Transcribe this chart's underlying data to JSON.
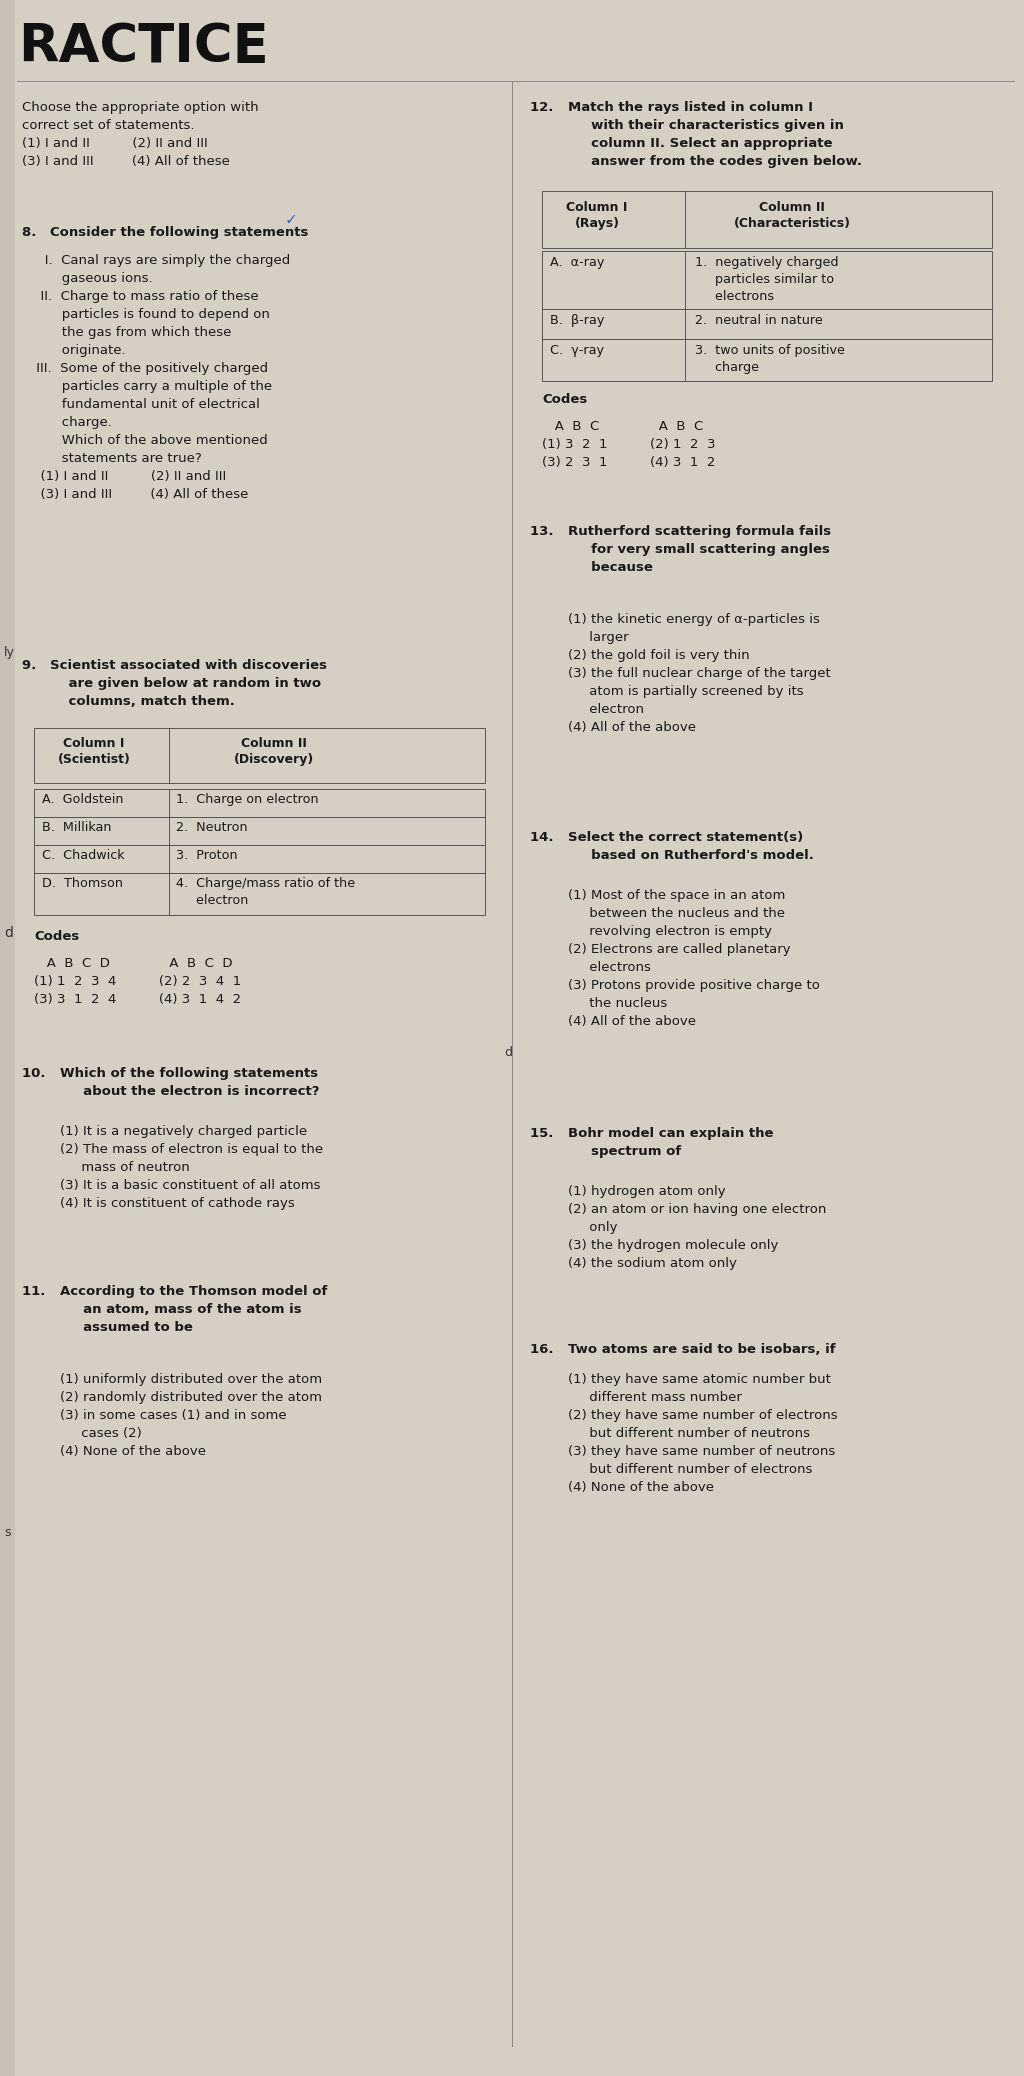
{
  "bg_color": "#d6cfc4",
  "text_color": "#1a1a1a",
  "title": "RACTICE",
  "content": [
    {
      "type": "plain",
      "text": "Choose the appropriate option with\ncorrect set of statements.\n(1) I and II          (2) II and III\n(3) I and III         (4) All of these"
    },
    {
      "type": "numbered",
      "number": "8.",
      "bold_part": "Consider the following statements",
      "body": "   I.  Canal rays are simply the charged\n       gaseous ions.\n  II.  Charge to mass ratio of these\n       particles is found to depend on\n       the gas from which these\n       originate.\n III.  Some of the positively charged\n       particles carry a multiple of the\n       fundamental unit of electrical\n       charge.\n       Which of the above mentioned\n       statements are true?\n       (1) I and II          (2) II and III\n       (3) I and III         (4) All of these"
    },
    {
      "type": "numbered",
      "number": "9.",
      "bold_part": "Scientist associated with discoveries\n    are given below at random in two\n    columns, match them.",
      "body": ""
    },
    {
      "type": "two_col_table",
      "col1_header": "Column I\n(Scientist)",
      "col2_header": "Column II\n(Discovery)",
      "rows": [
        [
          "A.  Goldstein",
          "1.  Charge on electron"
        ],
        [
          "B.  Millikan",
          "2.  Neutron"
        ],
        [
          "C.  Chadwick",
          "3.  Proton"
        ],
        [
          "D.  Thomson",
          "4.  Charge/mass ratio of the\n     electron"
        ]
      ],
      "codes_title": "Codes",
      "codes": "   A  B  C  D              A  B  C  D\n(1) 1  2  3  4          (2) 2  3  4  1\n(3) 3  1  2  4          (4) 3  1  4  2"
    },
    {
      "type": "numbered",
      "number": "10.",
      "bold_part": "Which of the following statements\n     about the electron is incorrect?",
      "body": "(1) It is a negatively charged particle\n(2) The mass of electron is equal to the\n     mass of neutron\n(3) It is a basic constituent of all atoms\n(4) It is constituent of cathode rays"
    },
    {
      "type": "numbered",
      "number": "11.",
      "bold_part": "According to the Thomson model of\n     an atom, mass of the atom is\n     assumed to be",
      "body": "(1) uniformly distributed over the atom\n(2) randomly distributed over the atom\n(3) in some cases (1) and in some\n     cases (2)\n(4) None of the above"
    }
  ],
  "right_content": [
    {
      "type": "numbered",
      "number": "12.",
      "bold_part": "Match the rays listed in column I\n     with their characteristics given in\n     column II. Select an appropriate\n     answer from the codes given below.",
      "body": ""
    },
    {
      "type": "match_table",
      "col1_header": "Column I\n(Rays)",
      "col2_header": "Column II\n(Characteristics)",
      "rows": [
        [
          "A.  α-ray",
          "1.  negatively charged\n     particles similar to\n     electrons"
        ],
        [
          "B.  β-ray",
          "2.  neutral in nature"
        ],
        [
          "C.  γ-ray",
          "3.  two units of positive\n     charge"
        ]
      ],
      "codes_title": "Codes",
      "codes": "   A  B  C              A  B  C\n(1) 3  2  1          (2) 1  2  3\n(3) 2  3  1          (4) 3  1  2"
    },
    {
      "type": "numbered",
      "number": "13.",
      "bold_part": "Rutherford scattering formula fails\n     for very small scattering angles\n     because",
      "body": "(1) the kinetic energy of α-particles is\n     larger\n(2) the gold foil is very thin\n(3) the full nuclear charge of the target\n     atom is partially screened by its\n     electron\n(4) All of the above"
    },
    {
      "type": "numbered",
      "number": "14.",
      "bold_part": "Select the correct statement(s)\n     based on Rutherford's model.",
      "body": "(1) Most of the space in an atom\n     between the nucleus and the\n     revolving electron is empty\n(2) Electrons are called planetary\n     electrons\n(3) Protons provide positive charge to\n     the nucleus\n(4) All of the above"
    },
    {
      "type": "numbered",
      "number": "15.",
      "bold_part": "Bohr model can explain the\n     spectrum of",
      "body": "(1) hydrogen atom only\n(2) an atom or ion having one electron\n     only\n(3) the hydrogen molecule only\n(4) the sodium atom only"
    },
    {
      "type": "numbered",
      "number": "16.",
      "bold_part": "Two atoms are said to be isobars, if",
      "body": "(1) they have same atomic number but\n     different mass number\n(2) they have same number of electrons\n     but different number of neutrons\n(3) they have same number of neutrons\n     but different number of electrons\n(4) None of the above"
    }
  ]
}
